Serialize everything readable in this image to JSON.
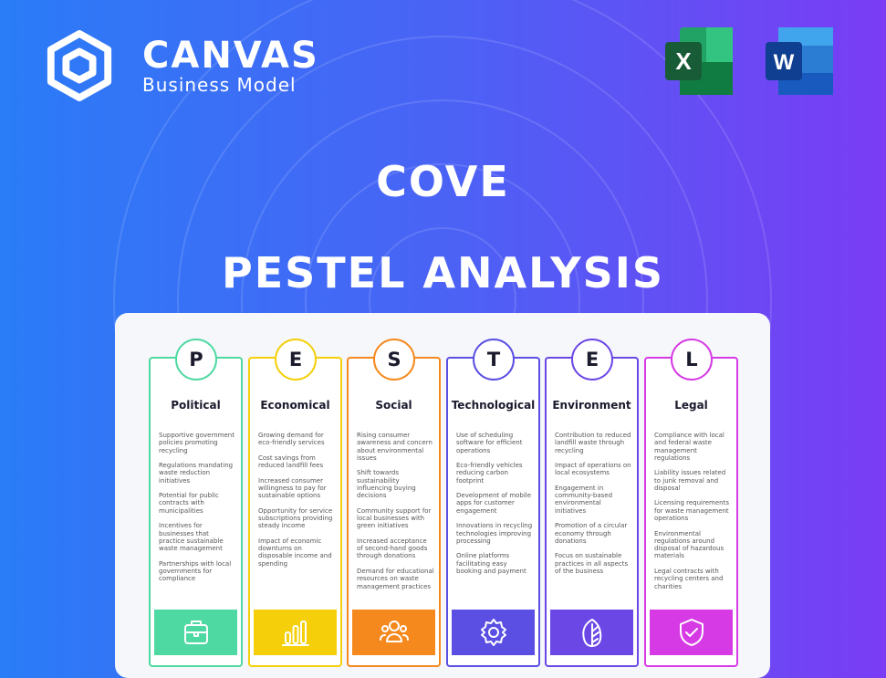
{
  "brand": {
    "name": "CANVAS",
    "tagline": "Business Model"
  },
  "apps": [
    {
      "name": "excel-icon",
      "letter": "X"
    },
    {
      "name": "word-icon",
      "letter": "W"
    }
  ],
  "header": {
    "company": "COVE",
    "subtitle": "PESTEL ANALYSIS"
  },
  "columns": [
    {
      "letter": "P",
      "title": "Political",
      "color": "#4fd9a2",
      "icon": "briefcase-icon",
      "items": [
        "Supportive government policies promoting recycling",
        "Regulations mandating waste reduction initiatives",
        "Potential for public contracts with municipalities",
        "Incentives for businesses that practice sustainable waste management",
        "Partnerships with local governments for compliance"
      ]
    },
    {
      "letter": "E",
      "title": "Economical",
      "color": "#f4cf0a",
      "icon": "bar-chart-icon",
      "items": [
        "Growing demand for eco-friendly services",
        "Cost savings from reduced landfill fees",
        "Increased consumer willingness to pay for sustainable options",
        "Opportunity for service subscriptions providing steady income",
        "Impact of economic downturns on disposable income and spending"
      ]
    },
    {
      "letter": "S",
      "title": "Social",
      "color": "#f5891e",
      "icon": "people-icon",
      "items": [
        "Rising consumer awareness and concern about environmental issues",
        "Shift towards sustainability influencing buying decisions",
        "Community support for local businesses with green initiatives",
        "Increased acceptance of second-hand goods through donations",
        "Demand for educational resources on waste management practices"
      ]
    },
    {
      "letter": "T",
      "title": "Technological",
      "color": "#5a4fe2",
      "icon": "gear-icon",
      "items": [
        "Use of scheduling software for efficient operations",
        "Eco-friendly vehicles reducing carbon footprint",
        "Development of mobile apps for customer engagement",
        "Innovations in recycling technologies improving processing",
        "Online platforms facilitating easy booking and payment"
      ]
    },
    {
      "letter": "E",
      "title": "Environment",
      "color": "#6b48e6",
      "icon": "leaf-icon",
      "items": [
        "Contribution to reduced landfill waste through recycling",
        "Impact of operations on local ecosystems",
        "Engagement in community-based environmental initiatives",
        "Promotion of a circular economy through donations",
        "Focus on sustainable practices in all aspects of the business"
      ]
    },
    {
      "letter": "L",
      "title": "Legal",
      "color": "#d63ae4",
      "icon": "shield-check-icon",
      "items": [
        "Compliance with local and federal waste management regulations",
        "Liability issues related to junk removal and disposal",
        "Licensing requirements for waste management operations",
        "Environmental regulations around disposal of hazardous materials",
        "Legal contracts with recycling centers and charities"
      ]
    }
  ]
}
